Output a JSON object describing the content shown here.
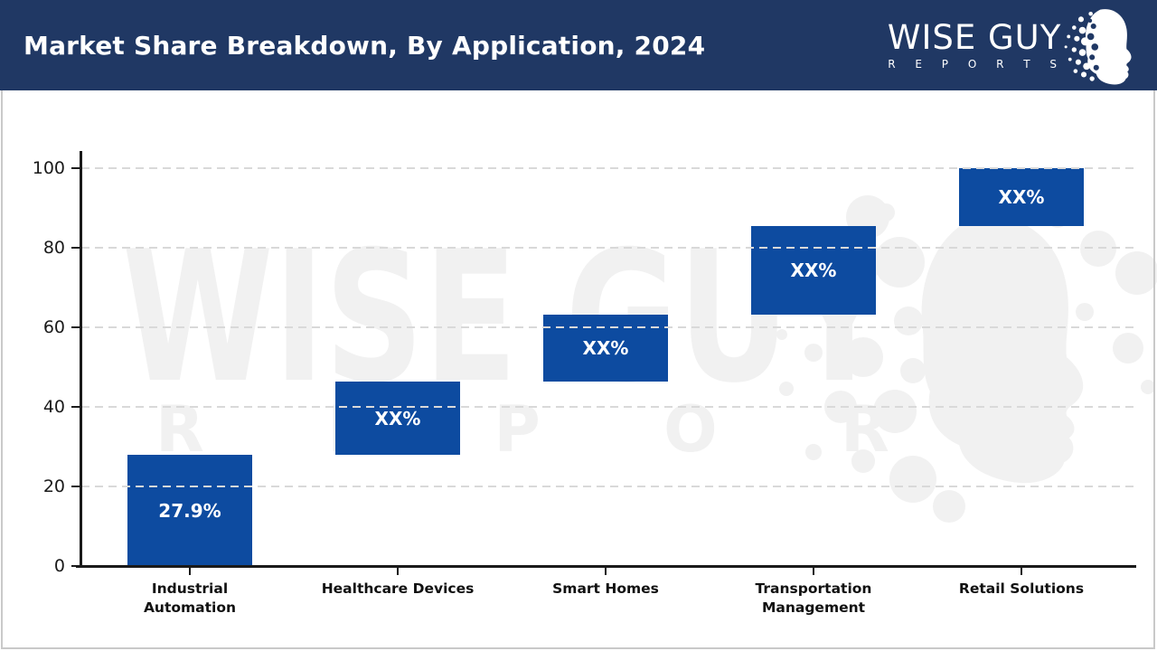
{
  "header": {
    "title": "Market Share Breakdown, By Application, 2024",
    "logo": {
      "name": "WISE GUY",
      "subname": "REPORTS",
      "display_sub": "R E P O R T S"
    }
  },
  "watermark": {
    "line1": "WISE GUY",
    "line2": "R E P O R T S"
  },
  "colors": {
    "header_bg": "#203864",
    "title_text": "#ffffff",
    "bar": "#0d4ba0",
    "bar_label": "#ffffff",
    "axis": "#1a1a1a",
    "grid": "#d9d9d9",
    "tick_label": "#1a1a1a",
    "category_label": "#111111",
    "watermark": "#f1f1f1",
    "frame_border": "#c9c9c9"
  },
  "chart_data": {
    "type": "bar",
    "subtype": "waterfall",
    "title": "Market Share Breakdown, By Application, 2024",
    "categories": [
      "Industrial\nAutomation",
      "Healthcare Devices",
      "Smart Homes",
      "Transportation\nManagement",
      "Retail Solutions"
    ],
    "segments": [
      {
        "category": "Industrial Automation",
        "start": 0,
        "end": 27.9,
        "label": "27.9%"
      },
      {
        "category": "Healthcare Devices",
        "start": 27.9,
        "end": 46.4,
        "label": "XX%"
      },
      {
        "category": "Smart Homes",
        "start": 46.4,
        "end": 63.2,
        "label": "XX%"
      },
      {
        "category": "Transportation Management",
        "start": 63.2,
        "end": 85.5,
        "label": "XX%"
      },
      {
        "category": "Retail Solutions",
        "start": 85.5,
        "end": 100,
        "label": "XX%"
      }
    ],
    "yticks": [
      0,
      20,
      40,
      60,
      80,
      100
    ],
    "ylim": [
      0,
      104
    ],
    "xlabel": "",
    "ylabel": "",
    "grid": {
      "axis": "y",
      "style": "dashed"
    },
    "legend": "none"
  }
}
